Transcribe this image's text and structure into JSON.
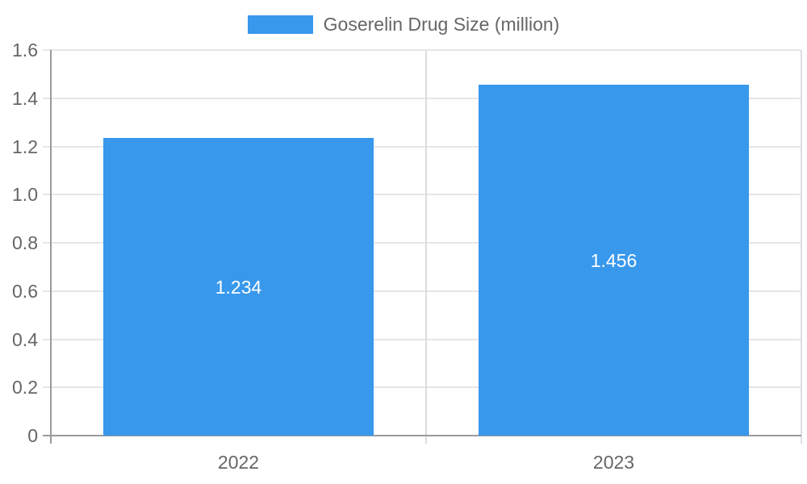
{
  "chart_data": {
    "type": "bar",
    "title": "Goserelin Drug Size (million)",
    "categories": [
      "2022",
      "2023"
    ],
    "values": [
      1.234,
      1.456
    ],
    "value_labels": [
      "1.234",
      "1.456"
    ],
    "ylim": [
      0,
      1.6
    ],
    "yticks": {
      "values": [
        0,
        0.2,
        0.4,
        0.6,
        0.8,
        1.0,
        1.2,
        1.4,
        1.6
      ],
      "labels": [
        "0",
        "0.2",
        "0.4",
        "0.6",
        "0.8",
        "1.0",
        "1.2",
        "1.4",
        "1.6"
      ]
    },
    "xlabel": "",
    "ylabel": "",
    "legend": {
      "position": "top",
      "label": "Goserelin Drug Size (million)"
    },
    "grid": true,
    "colors": {
      "bar": "#3898EC",
      "axis": "#9B9B9B",
      "grid": "#E6E6E6",
      "grid_vertical": "#DDDDDD",
      "tick_text": "#666666",
      "value_text": "#FFFFFF",
      "background": "#FFFFFF"
    }
  }
}
